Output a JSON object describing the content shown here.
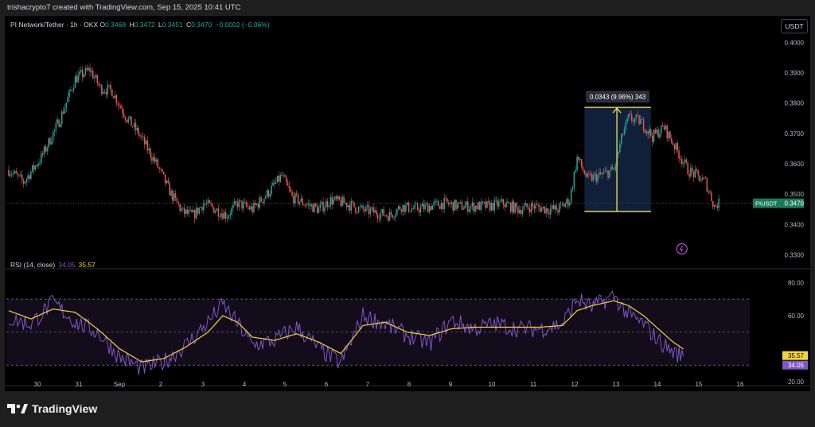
{
  "header": {
    "attribution": "trishacrypto7 created with TradingView.com, Sep 15, 2025 10:41 UTC"
  },
  "legend": {
    "symbol": "PI Network/Tether · 1h · OKX",
    "open_label": "O",
    "open": "0.3468",
    "high_label": "H",
    "high": "0.3472",
    "low_label": "L",
    "low": "0.3451",
    "close_label": "C",
    "close": "0.3470",
    "change": "−0.0002 (−0.06%)"
  },
  "currency_button": "USDT",
  "rsi_legend": {
    "label": "RSI (14, close)",
    "rsi_value": "34.05",
    "ma_value": "35.57"
  },
  "branding": {
    "logo_text": "TradingView"
  },
  "colors": {
    "up": "#26a69a",
    "down": "#ef5350",
    "rsi_line": "#7e57c2",
    "rsi_ma": "#f5d33d",
    "measure": "#f5e663"
  },
  "chart_data": [
    {
      "type": "candlestick",
      "title": "PI Network/Tether · 1h · OKX",
      "y_ticks": [
        "0.4000",
        "0.3900",
        "0.3800",
        "0.3700",
        "0.3600",
        "0.3500",
        "0.3400",
        "0.3300"
      ],
      "ylim": [
        0.3275,
        0.4035
      ],
      "x_ticks": [
        "30",
        "31",
        "Sep",
        "2",
        "3",
        "4",
        "5",
        "6",
        "7",
        "8",
        "9",
        "10",
        "11",
        "12",
        "13",
        "14",
        "15",
        "16"
      ],
      "last_price_label": "PIUSDT",
      "last_price": "0.3470",
      "measure": {
        "label": "0.0343 (9.96%) 343",
        "from_price": 0.3443,
        "to_price": 0.3786
      },
      "anchors": [
        [
          0,
          0.358
        ],
        [
          10,
          0.354
        ],
        [
          22,
          0.362
        ],
        [
          35,
          0.375
        ],
        [
          45,
          0.388
        ],
        [
          55,
          0.391
        ],
        [
          62,
          0.385
        ],
        [
          70,
          0.384
        ],
        [
          80,
          0.375
        ],
        [
          88,
          0.37
        ],
        [
          100,
          0.36
        ],
        [
          110,
          0.35
        ],
        [
          118,
          0.344
        ],
        [
          125,
          0.343
        ],
        [
          132,
          0.347
        ],
        [
          140,
          0.345
        ],
        [
          148,
          0.343
        ],
        [
          155,
          0.347
        ],
        [
          165,
          0.345
        ],
        [
          175,
          0.35
        ],
        [
          185,
          0.356
        ],
        [
          192,
          0.349
        ],
        [
          200,
          0.347
        ],
        [
          210,
          0.345
        ],
        [
          218,
          0.348
        ],
        [
          228,
          0.347
        ],
        [
          238,
          0.345
        ],
        [
          248,
          0.344
        ],
        [
          258,
          0.343
        ],
        [
          266,
          0.346
        ],
        [
          275,
          0.345
        ],
        [
          285,
          0.346
        ],
        [
          295,
          0.347
        ],
        [
          305,
          0.346
        ],
        [
          315,
          0.346
        ],
        [
          325,
          0.346
        ],
        [
          335,
          0.347
        ],
        [
          345,
          0.345
        ],
        [
          355,
          0.346
        ],
        [
          365,
          0.345
        ],
        [
          372,
          0.345
        ],
        [
          380,
          0.348
        ],
        [
          385,
          0.362
        ],
        [
          392,
          0.355
        ],
        [
          400,
          0.356
        ],
        [
          410,
          0.358
        ],
        [
          416,
          0.37
        ],
        [
          420,
          0.375
        ],
        [
          428,
          0.374
        ],
        [
          436,
          0.369
        ],
        [
          444,
          0.372
        ],
        [
          452,
          0.365
        ],
        [
          460,
          0.358
        ],
        [
          466,
          0.356
        ],
        [
          472,
          0.354
        ],
        [
          478,
          0.346
        ],
        [
          481,
          0.347
        ]
      ]
    },
    {
      "type": "line",
      "title": "RSI (14, close)",
      "y_ticks": [
        "80.00",
        "60.00",
        "20.00"
      ],
      "ylim": [
        20,
        85
      ],
      "bands": [
        30,
        50,
        70
      ],
      "series": [
        {
          "name": "RSI",
          "last": "34.05",
          "anchors": [
            [
              0,
              58
            ],
            [
              15,
              55
            ],
            [
              30,
              68
            ],
            [
              45,
              56
            ],
            [
              60,
              50
            ],
            [
              75,
              35
            ],
            [
              90,
              28
            ],
            [
              105,
              32
            ],
            [
              120,
              42
            ],
            [
              135,
              56
            ],
            [
              145,
              67
            ],
            [
              155,
              55
            ],
            [
              165,
              42
            ],
            [
              180,
              45
            ],
            [
              195,
              53
            ],
            [
              210,
              40
            ],
            [
              225,
              31
            ],
            [
              240,
              60
            ],
            [
              255,
              55
            ],
            [
              270,
              48
            ],
            [
              285,
              43
            ],
            [
              300,
              57
            ],
            [
              315,
              52
            ],
            [
              330,
              55
            ],
            [
              345,
              52
            ],
            [
              360,
              52
            ],
            [
              375,
              55
            ],
            [
              385,
              70
            ],
            [
              395,
              65
            ],
            [
              410,
              72
            ],
            [
              420,
              60
            ],
            [
              430,
              55
            ],
            [
              440,
              45
            ],
            [
              450,
              38
            ],
            [
              460,
              34
            ],
            [
              470,
              32
            ],
            [
              481,
              34
            ]
          ]
        },
        {
          "name": "RSI-based MA",
          "last": "35.57",
          "anchors": [
            [
              0,
              63
            ],
            [
              15,
              58
            ],
            [
              30,
              64
            ],
            [
              45,
              62
            ],
            [
              60,
              52
            ],
            [
              75,
              40
            ],
            [
              90,
              32
            ],
            [
              105,
              34
            ],
            [
              120,
              41
            ],
            [
              135,
              50
            ],
            [
              145,
              60
            ],
            [
              155,
              56
            ],
            [
              165,
              47
            ],
            [
              180,
              45
            ],
            [
              195,
              49
            ],
            [
              210,
              44
            ],
            [
              225,
              37
            ],
            [
              240,
              54
            ],
            [
              255,
              56
            ],
            [
              270,
              50
            ],
            [
              285,
              48
            ],
            [
              300,
              52
            ],
            [
              315,
              53
            ],
            [
              330,
              53
            ],
            [
              345,
              53
            ],
            [
              360,
              53
            ],
            [
              375,
              54
            ],
            [
              385,
              63
            ],
            [
              395,
              66
            ],
            [
              410,
              69
            ],
            [
              420,
              66
            ],
            [
              430,
              60
            ],
            [
              440,
              52
            ],
            [
              450,
              44
            ],
            [
              460,
              38
            ],
            [
              470,
              36
            ],
            [
              481,
              35.5
            ]
          ]
        }
      ]
    }
  ]
}
